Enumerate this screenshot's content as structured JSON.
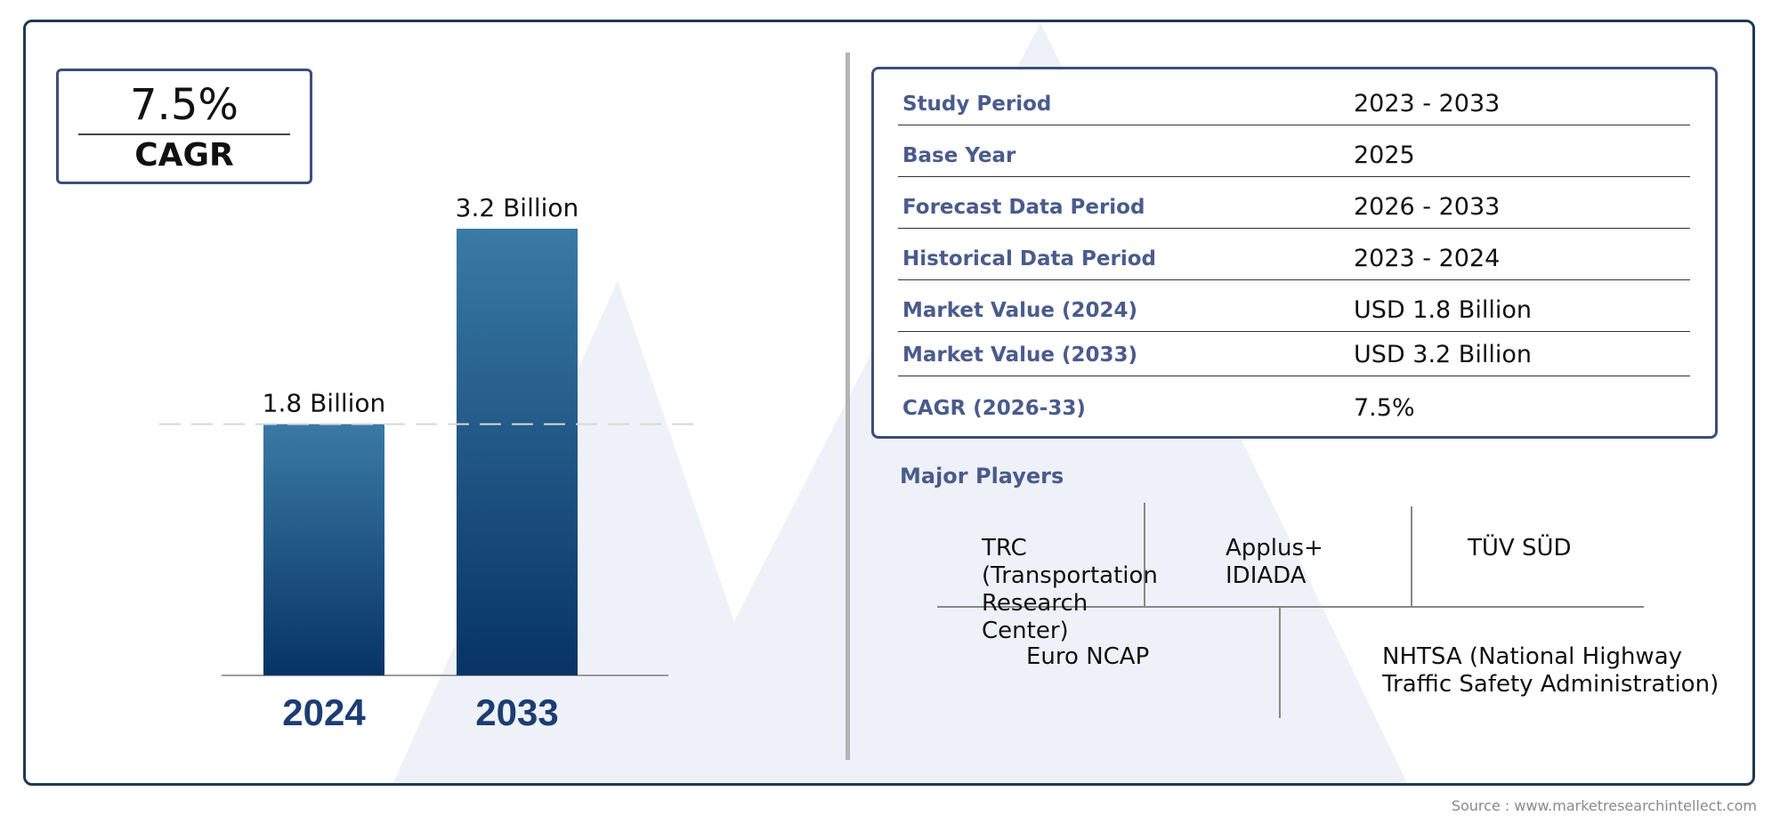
{
  "cagr_box": {
    "value": "7.5%",
    "label": "CAGR"
  },
  "chart_data": {
    "type": "bar",
    "categories": [
      "2024",
      "2033"
    ],
    "values": [
      1.8,
      3.2
    ],
    "value_labels": [
      "1.8 Billion",
      "3.2 Billion"
    ],
    "ylim": [
      0,
      3.2
    ],
    "colors": {
      "bar_top": "#3a7aa5",
      "bar_bottom": "#073366",
      "category_label": "#1d3d72"
    }
  },
  "summary": {
    "rows": [
      {
        "label": "Study Period",
        "value": "2023 - 2033"
      },
      {
        "label": "Base Year",
        "value": "2025"
      },
      {
        "label": "Forecast Data Period",
        "value": "2026 - 2033"
      },
      {
        "label": "Historical Data Period",
        "value": "2023 - 2024"
      },
      {
        "label": "Market Value (2024)",
        "value": "USD 1.8 Billion"
      },
      {
        "label": "Market Value (2033)",
        "value": "USD 3.2 Billion"
      },
      {
        "label": "CAGR (2026-33)",
        "value": "7.5%"
      }
    ]
  },
  "players": {
    "title": "Major Players",
    "items": [
      "TRC (Transportation Research Center)",
      "Applus+ IDIADA",
      "TÜV SÜD",
      "Euro NCAP",
      "NHTSA (National Highway Traffic Safety Administration)"
    ]
  },
  "source": "Source : www.marketresearchintellect.com"
}
